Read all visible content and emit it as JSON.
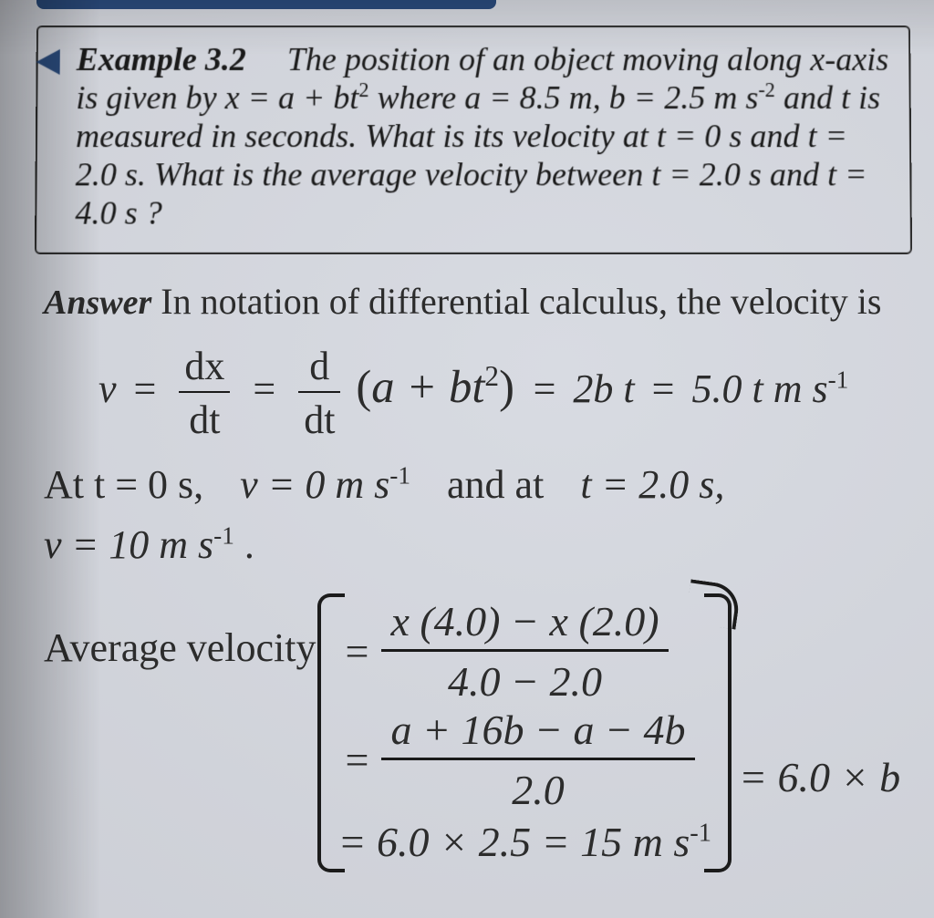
{
  "colors": {
    "paper": "#d8dbe2",
    "paper_shadow": "#c7c9d0",
    "ink": "#2c2c2c",
    "ink_strong": "#1a1a1a",
    "accent": "#2a4a7a",
    "box_border": "#2a2a2a",
    "hand_annot": "#1b1b1b"
  },
  "fonts": {
    "example_size": 36,
    "example_weight_title": 700,
    "body_size": 40,
    "answer_label_size": 38,
    "math_size": 44,
    "math_big_size": 46
  },
  "topbar": {
    "color": "#2a4a7a"
  },
  "example": {
    "title": "Example 3.2",
    "body_html": "The position of an object moving along x-axis is given by  x = a + bt<sup>2</sup> where  a = 8.5 m,  b = 2.5 m s<sup>-2</sup> and t is measured in seconds. What is its velocity at t = 0 s and t = 2.0 s. What is the average velocity between t = 2.0 s and t = 4.0 s ?"
  },
  "answer": {
    "label": "Answer",
    "intro": "In notation of differential calculus, the velocity is",
    "v_sym": "v",
    "eq1_lhs_num": "dx",
    "eq1_lhs_den": "dt",
    "eq1_mid_num": "d",
    "eq1_mid_den": "dt",
    "eq1_paren": "a + bt",
    "eq1_paren_sup": "2",
    "eq1_rhs1": "2b t",
    "eq1_rhs2": "5.0 t m s",
    "eq1_rhs2_sup": "-1",
    "line2_a": "At  t = 0 s,",
    "line2_b": "v = 0 m s",
    "line2_b_sup": "-1",
    "line2_c": "and at",
    "line2_d": "t = 2.0 s,",
    "line3": "v = 10 m s",
    "line3_sup": "-1",
    "line3_dot": ".",
    "avg_label": "Average velocity",
    "br_r1_num": "x (4.0) − x (2.0)",
    "br_r1_den": "4.0 − 2.0",
    "br_r2_num": "a + 16b − a − 4b",
    "br_r2_den": "2.0",
    "br_r3": "= 6.0 × 2.5 = 15 m s",
    "br_r3_sup": "-1",
    "tail": "= 6.0 × b"
  }
}
